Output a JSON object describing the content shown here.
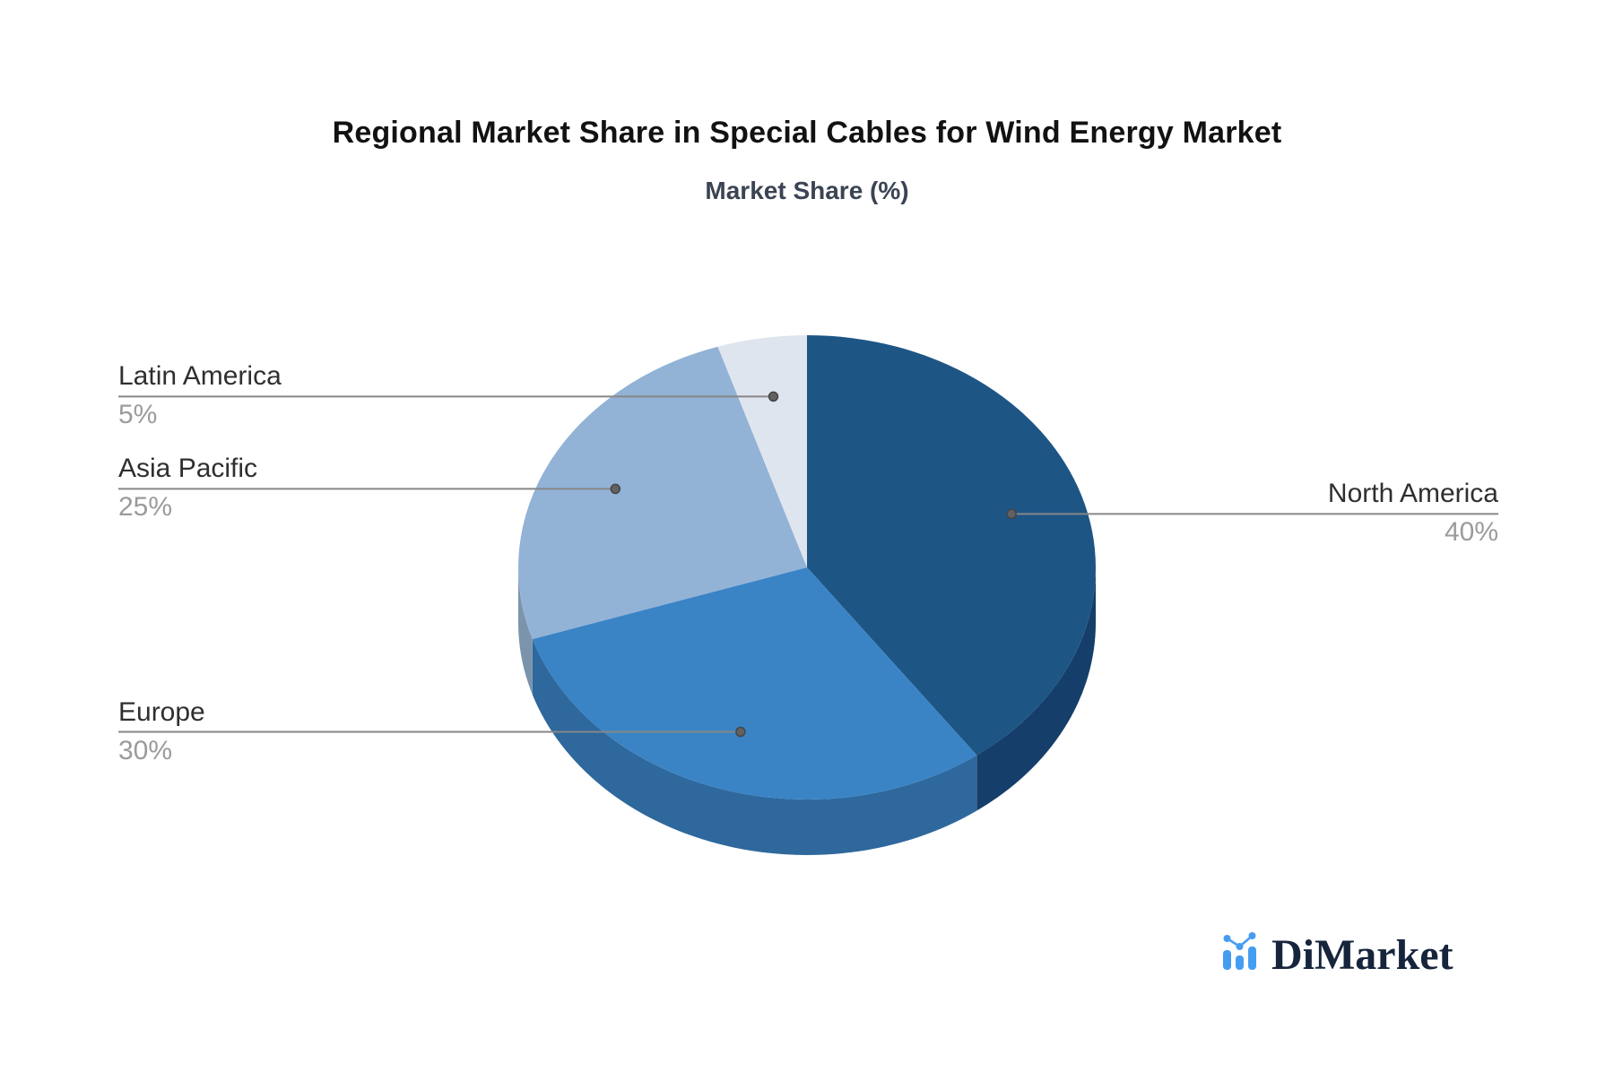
{
  "chart_data": {
    "type": "pie",
    "title": "Regional Market Share in Special Cables for Wind Energy Market",
    "subtitle": "Market Share (%)",
    "unit": "%",
    "effect_3d": true,
    "start_angle_deg": 90,
    "direction": "clockwise",
    "legend_position": "none",
    "slices": [
      {
        "label": "North America",
        "value": 40,
        "display": "40%",
        "color": "#1d5585",
        "side_color": "#153f6a",
        "label_side": "right"
      },
      {
        "label": "Europe",
        "value": 30,
        "display": "30%",
        "color": "#3a84c6",
        "side_color": "#2e689d",
        "label_side": "left"
      },
      {
        "label": "Asia Pacific",
        "value": 25,
        "display": "25%",
        "color": "#92b2d6",
        "side_color": "#7b94ac",
        "label_side": "left"
      },
      {
        "label": "Latin America",
        "value": 5,
        "display": "5%",
        "color": "#dfe5ef",
        "side_color": "#c9d2de",
        "label_side": "left"
      }
    ],
    "leader_line_color": "#878787",
    "leader_dot_color": "#626262",
    "leader_dot_ring_color": "#454545"
  },
  "logo": {
    "text": "DiMarket",
    "icon": "bar-line-chart-icon"
  },
  "theme": {
    "title_color": "#121212",
    "subtitle_color": "#3b4453",
    "label_name_color": "#2f2f2f",
    "label_value_color": "#9b9b9b",
    "logo_blue": "#459df2",
    "logo_text_color": "#16243c",
    "background": "#ffffff"
  }
}
